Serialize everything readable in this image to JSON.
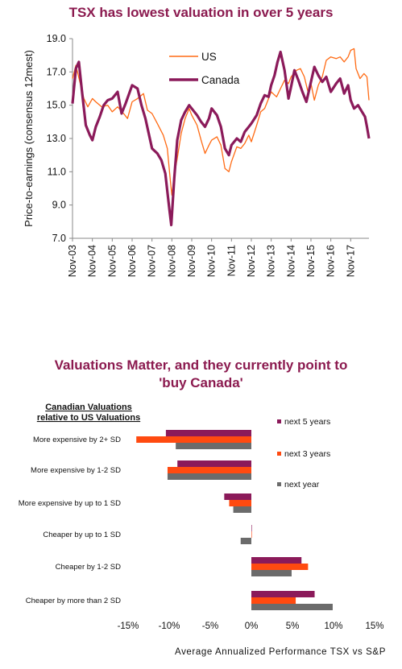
{
  "chart_data": [
    {
      "type": "line",
      "title": "TSX has lowest valuation in over 5 years",
      "ylabel": "Price-to-earnings (consensus 12mest)",
      "ylim": [
        7.0,
        19.0
      ],
      "yticks": [
        "19.0",
        "17.0",
        "15.0",
        "13.0",
        "11.0",
        "9.0",
        "7.0"
      ],
      "xticks": [
        "Nov-03",
        "Nov-04",
        "Nov-05",
        "Nov-06",
        "Nov-07",
        "Nov-08",
        "Nov-09",
        "Nov-10",
        "Nov-11",
        "Nov-12",
        "Nov-13",
        "Nov-14",
        "Nov-15",
        "Nov-16",
        "Nov-17"
      ],
      "xlim": [
        2003.83,
        2018.75
      ],
      "legend": "top-center",
      "series": [
        {
          "name": "US",
          "color": "#ff6a13",
          "points": [
            [
              2003.83,
              16.6
            ],
            [
              2004.0,
              17.4
            ],
            [
              2004.2,
              16.4
            ],
            [
              2004.4,
              15.4
            ],
            [
              2004.6,
              14.9
            ],
            [
              2004.83,
              15.4
            ],
            [
              2005.0,
              15.2
            ],
            [
              2005.3,
              14.9
            ],
            [
              2005.6,
              15.0
            ],
            [
              2005.83,
              14.6
            ],
            [
              2006.1,
              14.9
            ],
            [
              2006.4,
              14.5
            ],
            [
              2006.6,
              14.2
            ],
            [
              2006.83,
              15.2
            ],
            [
              2007.1,
              15.4
            ],
            [
              2007.4,
              15.7
            ],
            [
              2007.6,
              14.7
            ],
            [
              2007.83,
              14.5
            ],
            [
              2008.1,
              13.9
            ],
            [
              2008.4,
              13.2
            ],
            [
              2008.6,
              12.4
            ],
            [
              2008.75,
              10.5
            ],
            [
              2008.83,
              9.6
            ],
            [
              2008.95,
              10.8
            ],
            [
              2009.1,
              11.8
            ],
            [
              2009.3,
              13.3
            ],
            [
              2009.5,
              14.2
            ],
            [
              2009.7,
              14.8
            ],
            [
              2009.83,
              14.4
            ],
            [
              2010.1,
              13.8
            ],
            [
              2010.3,
              12.9
            ],
            [
              2010.5,
              12.1
            ],
            [
              2010.7,
              12.6
            ],
            [
              2010.83,
              12.9
            ],
            [
              2011.1,
              13.1
            ],
            [
              2011.3,
              12.6
            ],
            [
              2011.5,
              11.2
            ],
            [
              2011.7,
              11.0
            ],
            [
              2011.83,
              11.6
            ],
            [
              2012.1,
              12.5
            ],
            [
              2012.3,
              12.4
            ],
            [
              2012.5,
              12.7
            ],
            [
              2012.7,
              13.2
            ],
            [
              2012.83,
              12.8
            ],
            [
              2013.1,
              13.8
            ],
            [
              2013.3,
              14.6
            ],
            [
              2013.5,
              14.8
            ],
            [
              2013.7,
              15.4
            ],
            [
              2013.83,
              15.8
            ],
            [
              2014.1,
              15.5
            ],
            [
              2014.3,
              16.0
            ],
            [
              2014.5,
              16.5
            ],
            [
              2014.7,
              16.3
            ],
            [
              2014.83,
              16.7
            ],
            [
              2015.1,
              17.1
            ],
            [
              2015.3,
              17.2
            ],
            [
              2015.5,
              16.7
            ],
            [
              2015.7,
              15.7
            ],
            [
              2015.83,
              16.3
            ],
            [
              2016.0,
              15.3
            ],
            [
              2016.2,
              16.2
            ],
            [
              2016.4,
              16.7
            ],
            [
              2016.6,
              17.7
            ],
            [
              2016.83,
              17.9
            ],
            [
              2017.1,
              17.8
            ],
            [
              2017.3,
              17.9
            ],
            [
              2017.5,
              17.6
            ],
            [
              2017.7,
              17.9
            ],
            [
              2017.83,
              18.3
            ],
            [
              2018.0,
              18.4
            ],
            [
              2018.1,
              17.2
            ],
            [
              2018.3,
              16.6
            ],
            [
              2018.5,
              16.9
            ],
            [
              2018.65,
              16.7
            ],
            [
              2018.75,
              15.3
            ]
          ]
        },
        {
          "name": "Canada",
          "color": "#8b1a5a",
          "points": [
            [
              2003.83,
              15.1
            ],
            [
              2004.0,
              17.2
            ],
            [
              2004.15,
              17.6
            ],
            [
              2004.3,
              15.9
            ],
            [
              2004.5,
              13.8
            ],
            [
              2004.7,
              13.2
            ],
            [
              2004.83,
              12.9
            ],
            [
              2005.0,
              13.7
            ],
            [
              2005.2,
              14.3
            ],
            [
              2005.4,
              15.0
            ],
            [
              2005.6,
              15.3
            ],
            [
              2005.83,
              15.4
            ],
            [
              2006.1,
              15.8
            ],
            [
              2006.3,
              14.5
            ],
            [
              2006.5,
              15.1
            ],
            [
              2006.83,
              16.2
            ],
            [
              2007.1,
              16.0
            ],
            [
              2007.3,
              15.0
            ],
            [
              2007.5,
              14.2
            ],
            [
              2007.7,
              13.1
            ],
            [
              2007.83,
              12.4
            ],
            [
              2008.1,
              12.1
            ],
            [
              2008.3,
              11.7
            ],
            [
              2008.5,
              10.9
            ],
            [
              2008.7,
              8.8
            ],
            [
              2008.8,
              7.8
            ],
            [
              2008.95,
              10.6
            ],
            [
              2009.1,
              12.9
            ],
            [
              2009.3,
              14.1
            ],
            [
              2009.5,
              14.6
            ],
            [
              2009.7,
              15.0
            ],
            [
              2009.83,
              14.8
            ],
            [
              2010.1,
              14.4
            ],
            [
              2010.3,
              14.0
            ],
            [
              2010.5,
              13.7
            ],
            [
              2010.7,
              14.2
            ],
            [
              2010.83,
              14.8
            ],
            [
              2011.1,
              14.4
            ],
            [
              2011.3,
              13.7
            ],
            [
              2011.5,
              12.4
            ],
            [
              2011.7,
              12.0
            ],
            [
              2011.83,
              12.6
            ],
            [
              2012.1,
              13.0
            ],
            [
              2012.3,
              12.8
            ],
            [
              2012.5,
              13.4
            ],
            [
              2012.7,
              13.7
            ],
            [
              2012.83,
              13.9
            ],
            [
              2013.1,
              14.4
            ],
            [
              2013.3,
              15.1
            ],
            [
              2013.5,
              15.6
            ],
            [
              2013.7,
              15.5
            ],
            [
              2013.83,
              16.2
            ],
            [
              2014.0,
              16.8
            ],
            [
              2014.15,
              17.6
            ],
            [
              2014.3,
              18.2
            ],
            [
              2014.5,
              17.1
            ],
            [
              2014.7,
              15.4
            ],
            [
              2014.83,
              16.1
            ],
            [
              2015.0,
              17.1
            ],
            [
              2015.2,
              16.5
            ],
            [
              2015.4,
              15.8
            ],
            [
              2015.6,
              15.2
            ],
            [
              2015.83,
              16.4
            ],
            [
              2016.0,
              17.3
            ],
            [
              2016.2,
              16.8
            ],
            [
              2016.4,
              16.4
            ],
            [
              2016.6,
              16.7
            ],
            [
              2016.83,
              15.8
            ],
            [
              2017.1,
              16.3
            ],
            [
              2017.3,
              16.6
            ],
            [
              2017.5,
              15.7
            ],
            [
              2017.7,
              16.2
            ],
            [
              2017.83,
              15.3
            ],
            [
              2018.0,
              14.8
            ],
            [
              2018.2,
              15.0
            ],
            [
              2018.4,
              14.6
            ],
            [
              2018.55,
              14.3
            ],
            [
              2018.65,
              13.7
            ],
            [
              2018.75,
              13.0
            ]
          ]
        }
      ]
    },
    {
      "type": "bar",
      "orientation": "horizontal",
      "title": "Valuations Matter, and they currently point to 'buy Canada'",
      "category_header": [
        "Canadian Valuations",
        "relative to US Valuations"
      ],
      "xlabel": "Average Annualized Performance TSX vs S&P",
      "xlim": [
        -15,
        15
      ],
      "xticks": [
        "-15%",
        "-10%",
        "-5%",
        "0%",
        "5%",
        "10%",
        "15%"
      ],
      "legend": "right",
      "categories": [
        "More expensive by 2+ SD",
        "More expensive by 1-2 SD",
        "More expensive by up to 1 SD",
        "Cheaper by up to 1 SD",
        "Cheaper by 1-2 SD",
        "Cheaper by more than 2 SD"
      ],
      "series": [
        {
          "name": "next 5 years",
          "color": "#8b1a5a",
          "values": [
            -10.4,
            -9.0,
            -3.3,
            0.0,
            6.1,
            7.7
          ]
        },
        {
          "name": "next 3 years",
          "color": "#ff4a10",
          "values": [
            -14.0,
            -10.2,
            -2.7,
            0.05,
            6.9,
            5.4
          ]
        },
        {
          "name": "next year",
          "color": "#6b6b6b",
          "values": [
            -9.2,
            -10.2,
            -2.2,
            -1.3,
            4.9,
            9.9
          ]
        }
      ]
    }
  ]
}
